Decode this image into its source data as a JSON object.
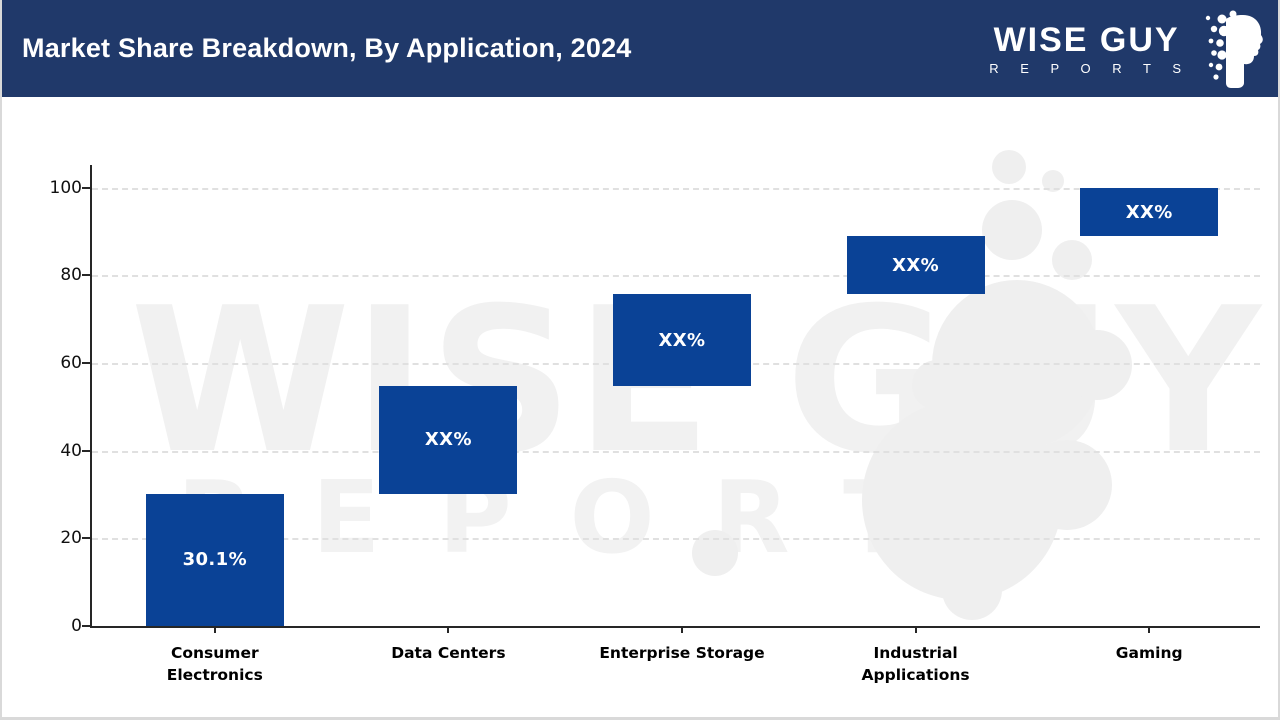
{
  "header": {
    "title": "Market Share Breakdown, By Application, 2024",
    "logo": {
      "line1": "WISE GUY",
      "line2": "R E P O R T S"
    }
  },
  "watermark": {
    "line1": "WISE GUY",
    "line2": "REPORTS"
  },
  "colors": {
    "header_bg": "#20396a",
    "bar": "#0a4296",
    "axis": "#262626",
    "gridline": "#e0e0e0",
    "watermark": "#f1f1f1",
    "bar_label_text": "#ffffff"
  },
  "chart_data": {
    "type": "bar",
    "subtype": "floating-waterfall",
    "title": "Market Share Breakdown, By Application, 2024",
    "xlabel": "",
    "ylabel": "",
    "categories": [
      "Consumer\nElectronics",
      "Data Centers",
      "Enterprise Storage",
      "Industrial\nApplications",
      "Gaming"
    ],
    "segments": [
      {
        "category": "Consumer Electronics",
        "start": 0,
        "end": 30.1,
        "label": "30.1%"
      },
      {
        "category": "Data Centers",
        "start": 30.1,
        "end": 54.8,
        "label": "XX%"
      },
      {
        "category": "Enterprise Storage",
        "start": 54.8,
        "end": 75.6,
        "label": "XX%"
      },
      {
        "category": "Industrial Applications",
        "start": 75.6,
        "end": 89.0,
        "label": "XX%"
      },
      {
        "category": "Gaming",
        "start": 89.0,
        "end": 99.8,
        "label": "XX%"
      }
    ],
    "yticks": [
      0,
      20,
      40,
      60,
      80,
      100
    ],
    "ylim": [
      0,
      105
    ],
    "grid": "horizontal-dashed",
    "legend": "none"
  }
}
